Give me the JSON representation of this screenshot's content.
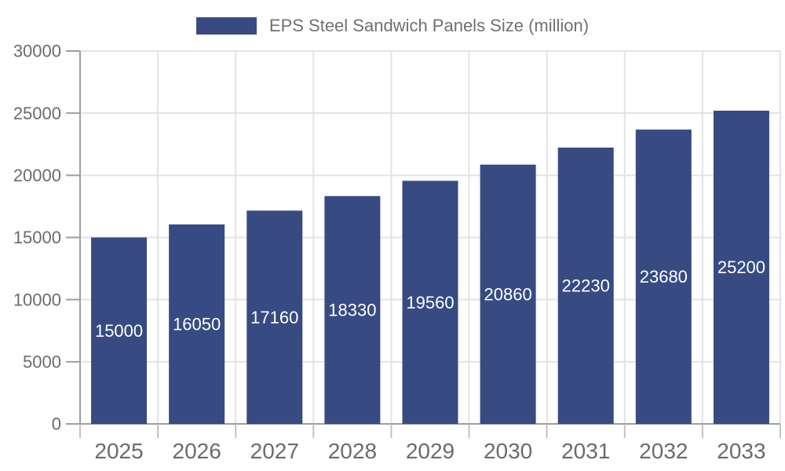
{
  "legend": {
    "label": "EPS Steel Sandwich Panels Size (million)"
  },
  "colors": {
    "bar": "#374b82",
    "grid": "#e3e3e6",
    "axis": "#9e9e9e",
    "tick": "#c2c2c2",
    "axis_text": "#6b6b6b",
    "value_label": "#ffffff",
    "background": "#ffffff"
  },
  "chart_data": {
    "type": "bar",
    "title": "EPS Steel Sandwich Panels Size (million)",
    "categories": [
      "2025",
      "2026",
      "2027",
      "2028",
      "2029",
      "2030",
      "2031",
      "2032",
      "2033"
    ],
    "values": [
      15000,
      16050,
      17160,
      18330,
      19560,
      20860,
      22230,
      23680,
      25200
    ],
    "xlabel": "",
    "ylabel": "",
    "ylim": [
      0,
      30000
    ],
    "ytick_step": 5000,
    "ytick_labels": [
      "0",
      "5000",
      "10000",
      "15000",
      "20000",
      "25000",
      "30000"
    ],
    "grid": true,
    "legend_position": "top",
    "value_label_position": "inside-center"
  }
}
